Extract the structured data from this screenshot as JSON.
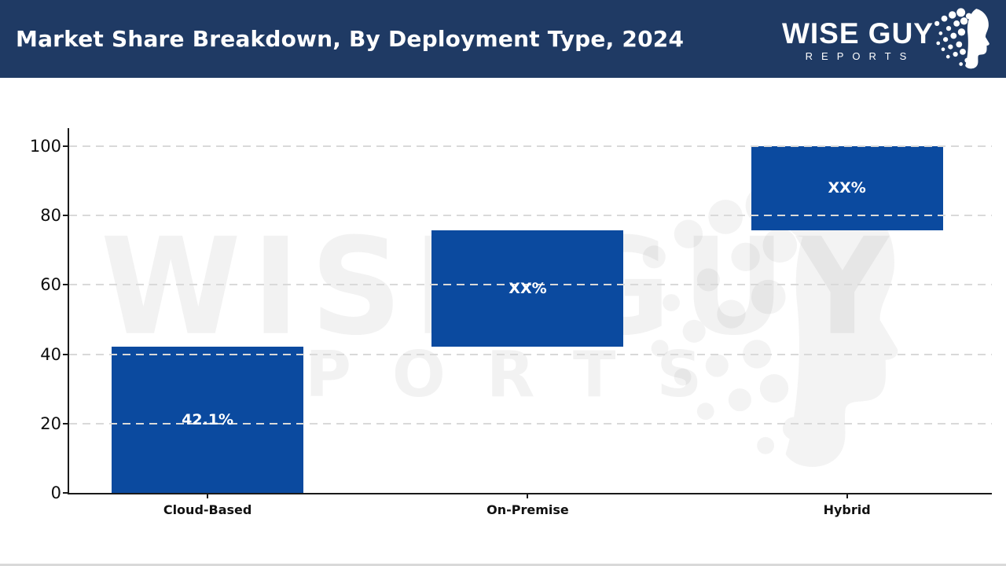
{
  "header": {
    "title": "Market Share Breakdown, By Deployment Type, 2024",
    "logo": {
      "name": "Wise Guy Reports",
      "line1": "WISE GUY",
      "line2": "REPORTS"
    }
  },
  "watermark": {
    "line1": "WISE GUY",
    "line2": "REPORTS"
  },
  "chart_data": {
    "type": "bar",
    "subtype": "stacked-waterfall-segments",
    "title": "Market Share Breakdown, By Deployment Type, 2024",
    "categories": [
      "Cloud-Based",
      "On-Premise",
      "Hybrid"
    ],
    "bars": [
      {
        "category": "Cloud-Based",
        "start": 0,
        "end": 42.1,
        "label": "42.1%"
      },
      {
        "category": "On-Premise",
        "start": 42.1,
        "end": 75.8,
        "label": "XX%"
      },
      {
        "category": "Hybrid",
        "start": 75.8,
        "end": 100,
        "label": "XX%"
      }
    ],
    "ylabel": "",
    "xlabel": "",
    "ylim": [
      0,
      105
    ],
    "yticks": [
      0,
      20,
      40,
      60,
      80,
      100
    ],
    "grid": {
      "axis": "y",
      "style": "dashed",
      "color": "#d9d9d9"
    },
    "bar_color": "#0b4a9f",
    "bar_label_color": "#ffffff",
    "legend": null
  },
  "colors": {
    "header_bg": "#1f3a64",
    "bar": "#0b4a9f",
    "spine": "#1a1a1a",
    "gridline": "#d9d9d9"
  }
}
